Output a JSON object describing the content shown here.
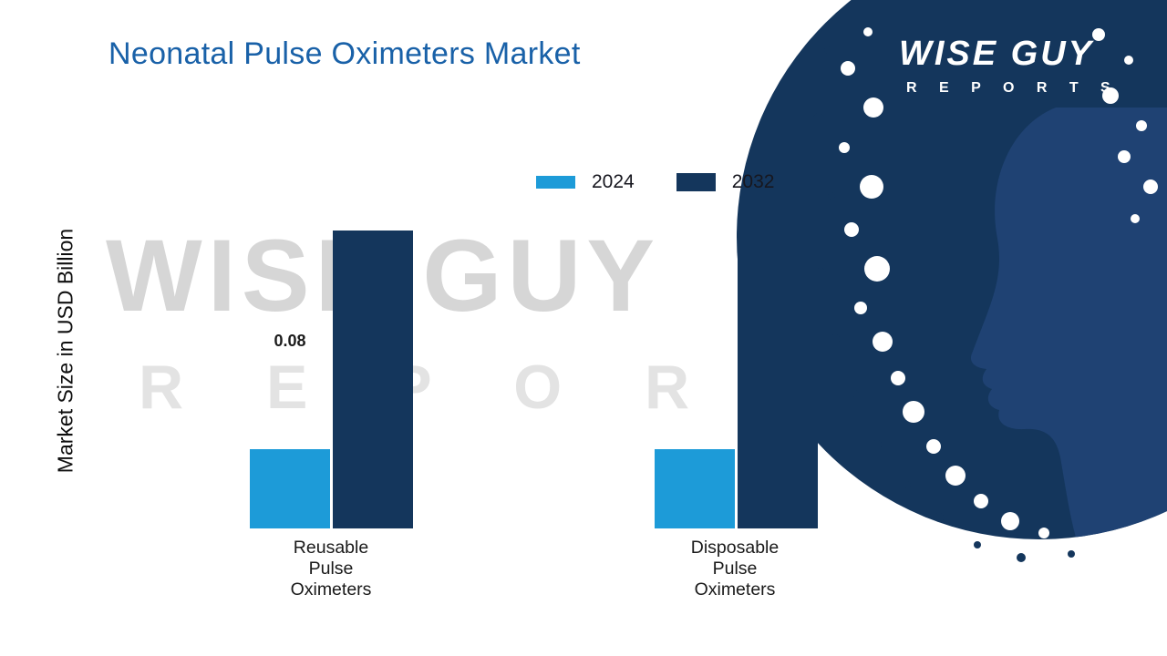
{
  "header": {
    "title": "Neonatal Pulse Oximeters Market"
  },
  "logo": {
    "title": "WISE GUY",
    "subtitle": "R E P O R T S"
  },
  "watermark": {
    "line1": "WISE GUY",
    "line2": "R E P O R T S"
  },
  "legend": {
    "items": [
      {
        "label": "2024",
        "color": "#1d9bd8"
      },
      {
        "label": "2032",
        "color": "#14365c"
      }
    ]
  },
  "chart_data": {
    "type": "bar",
    "title": "Neonatal Pulse Oximeters Market",
    "ylabel": "Market Size in USD Billion",
    "xlabel": "",
    "categories": [
      "Reusable Pulse Oximeters",
      "Disposable Pulse Oximeters"
    ],
    "series": [
      {
        "name": "2024",
        "color": "#1d9bd8",
        "values": [
          0.08,
          0.08
        ]
      },
      {
        "name": "2032",
        "color": "#14365c",
        "values": [
          0.3,
          0.3
        ]
      }
    ],
    "data_labels": [
      {
        "series": "2024",
        "category": "Reusable Pulse Oximeters",
        "text": "0.08"
      }
    ],
    "legend_position": "top",
    "grid": false,
    "ylim": [
      0,
      0.35
    ]
  }
}
